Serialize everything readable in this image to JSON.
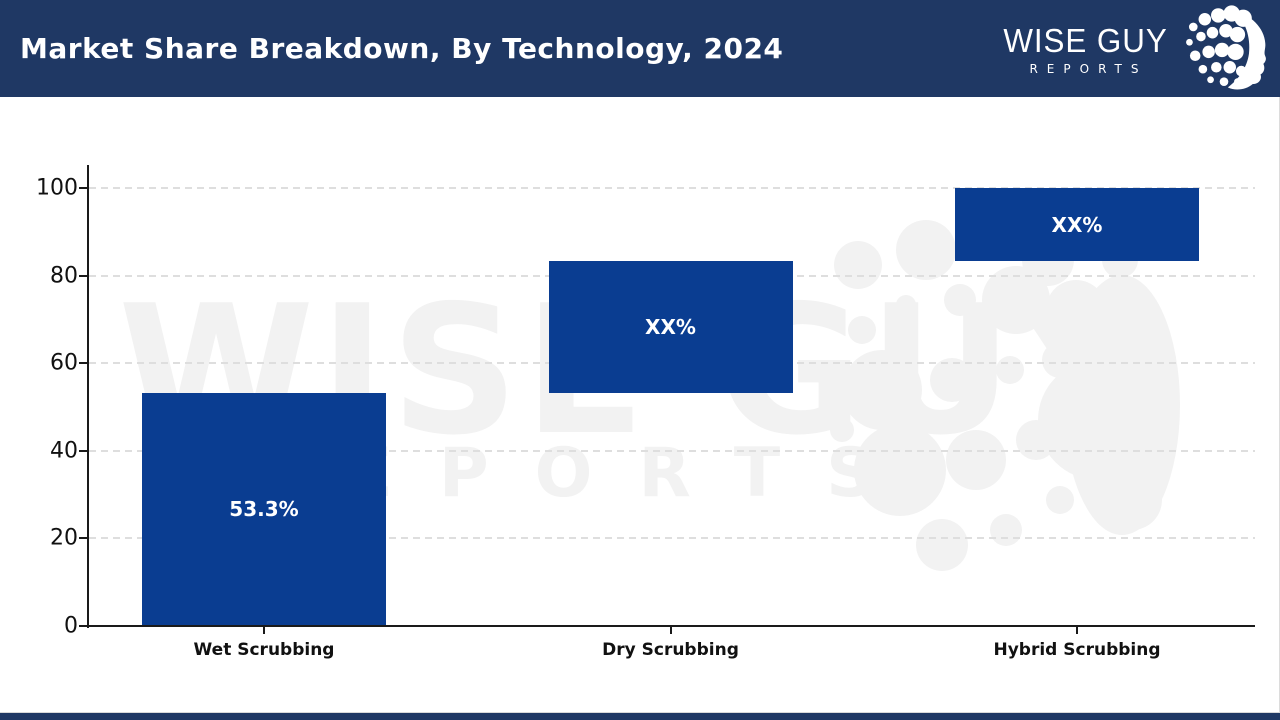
{
  "header": {
    "title": "Market Share Breakdown, By Technology, 2024",
    "logo": {
      "line1": "WISE GUY",
      "line2": "REPORTS"
    }
  },
  "watermark": {
    "line1": "WISE GUY",
    "line2": "REPORTS"
  },
  "colors": {
    "header_bg": "#1F3864",
    "footer_bg": "#1F3864",
    "bar": "#0A3D91",
    "bar_label": "#FFFFFF",
    "grid": "#DEDEDE",
    "axis": "#1A1A1A",
    "text": "#111111",
    "watermark": "#F2F2F2"
  },
  "chart_data": {
    "type": "bar",
    "variant": "stacked-range (waterfall of market share segments)",
    "title": "Market Share Breakdown, By Technology, 2024",
    "categories": [
      "Wet Scrubbing",
      "Dry Scrubbing",
      "Hybrid Scrubbing"
    ],
    "series": [
      {
        "name": "Wet Scrubbing",
        "start": 0,
        "end": 53.3,
        "label": "53.3%"
      },
      {
        "name": "Dry Scrubbing",
        "start": 53.3,
        "end": 83.3,
        "label": "XX%"
      },
      {
        "name": "Hybrid Scrubbing",
        "start": 83.3,
        "end": 100,
        "label": "XX%"
      }
    ],
    "xlabel": "",
    "ylabel": "",
    "ylim": [
      0,
      100
    ],
    "yticks": [
      0,
      20,
      40,
      60,
      80,
      100
    ],
    "grid": "horizontal dashed",
    "legend": "none"
  }
}
